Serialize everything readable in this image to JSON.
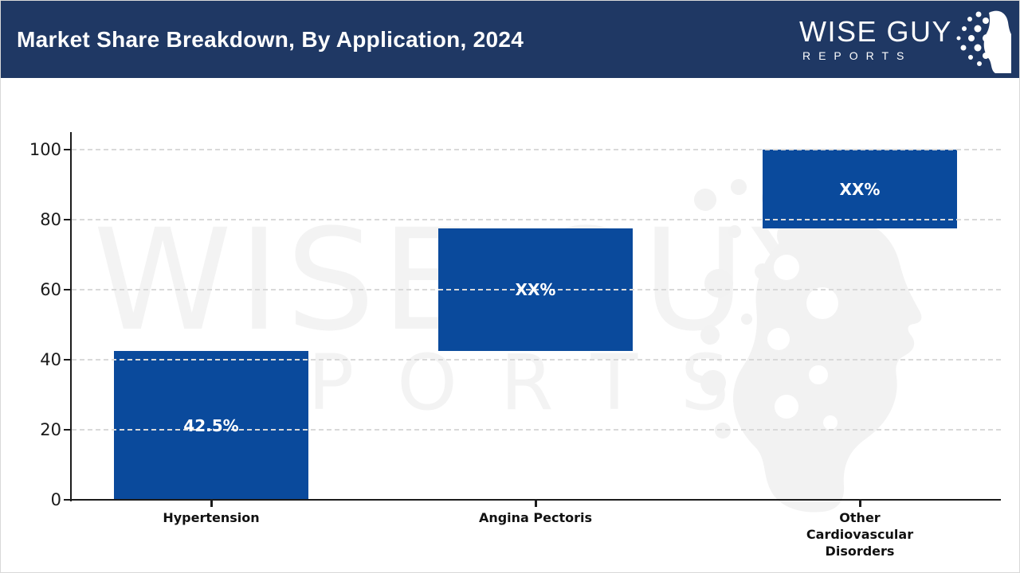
{
  "header": {
    "title": "Market Share Breakdown, By Application, 2024",
    "logo": {
      "primary": "WISE GUY",
      "secondary": "REPORTS"
    }
  },
  "watermark": {
    "primary": "WISE GUY",
    "secondary": "REPORTS"
  },
  "chart_data": {
    "type": "bar",
    "subtype": "waterfall",
    "title": "Market Share Breakdown, By Application, 2024",
    "categories": [
      "Hypertension",
      "Angina Pectoris",
      "Other Cardiovascular Disorders"
    ],
    "category_label_lines": [
      [
        "Hypertension"
      ],
      [
        "Angina Pectoris"
      ],
      [
        "Other",
        "Cardiovascular",
        "Disorders"
      ]
    ],
    "segments": [
      {
        "category": "Hypertension",
        "from": 0,
        "to": 42.5,
        "label": "42.5%"
      },
      {
        "category": "Angina Pectoris",
        "from": 42.5,
        "to": 77.5,
        "label": "XX%"
      },
      {
        "category": "Other Cardiovascular Disorders",
        "from": 77.5,
        "to": 100,
        "label": "XX%"
      }
    ],
    "ylim": [
      0,
      105
    ],
    "yticks": [
      0,
      20,
      40,
      60,
      80,
      100
    ],
    "xlabel": "",
    "ylabel": "",
    "grid": "horizontal-dashed",
    "legend": "none",
    "bar_color": "#0a4a9c",
    "bar_label_color": "#ffffff"
  },
  "colors": {
    "header_bg": "#1f3864",
    "header_text": "#ffffff",
    "bar": "#0a4a9c",
    "grid": "#d9d9d9",
    "axis": "#1c1c1c",
    "tick_label": "#1a1a1a",
    "watermark": "#f2f2f2",
    "page_border": "#d9d9d9",
    "background": "#ffffff"
  }
}
